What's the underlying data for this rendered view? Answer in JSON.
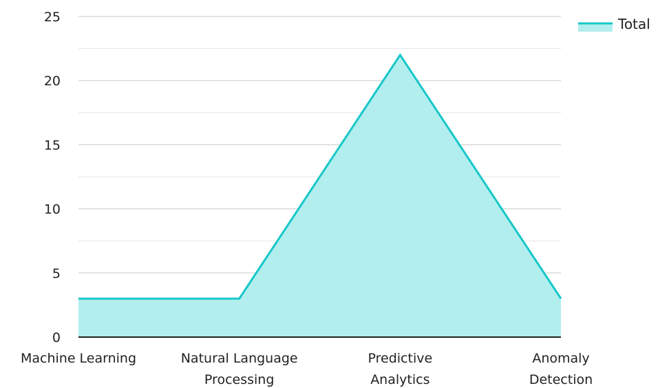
{
  "chart_data": {
    "type": "area",
    "categories": [
      [
        "Machine Learning"
      ],
      [
        "Natural Language",
        "Processing"
      ],
      [
        "Predictive",
        "Analytics"
      ],
      [
        "Anomaly",
        "Detection"
      ]
    ],
    "series": [
      {
        "name": "Total",
        "values": [
          3,
          3,
          22,
          3
        ]
      }
    ],
    "ylim": [
      0,
      25
    ],
    "yticks": [
      0,
      5,
      10,
      15,
      20,
      25
    ],
    "minor_gridlines": [
      2.5,
      7.5,
      12.5,
      17.5,
      22.5
    ],
    "grid": true,
    "legend_position": "top-right",
    "colors": {
      "line": "#16c7c9",
      "fill": "#b2eeee",
      "grid": "#c8c8c8",
      "minor_grid": "#e6e6e6",
      "axis": "#222222"
    }
  }
}
